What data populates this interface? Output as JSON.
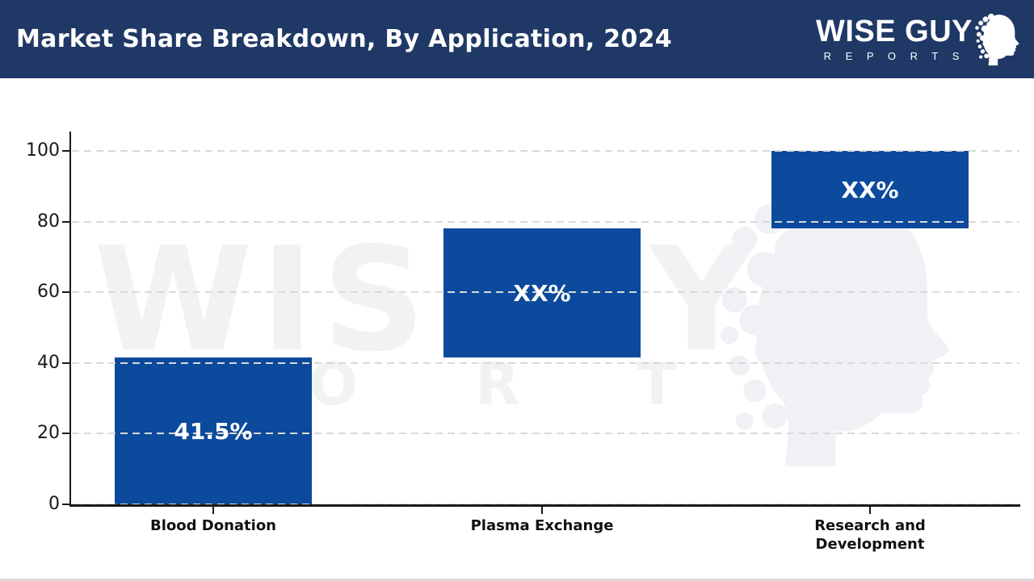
{
  "header": {
    "title": "Market Share Breakdown, By Application, 2024",
    "bg_color": "#1f3866",
    "logo": {
      "brand_line1": "WISE GUY",
      "brand_line2": "R E P O R T S",
      "face_icon": "dotted-face-profile"
    }
  },
  "watermark": {
    "word1": "WISE",
    "word2": "Y",
    "word3": "P O R T S"
  },
  "chart_data": {
    "type": "bar",
    "subtype": "stacked-waterfall",
    "title": "Market Share Breakdown, By Application, 2024",
    "categories": [
      "Blood Donation",
      "Plasma Exchange",
      "Research and\nDevelopment"
    ],
    "segments": [
      {
        "category": "Blood Donation",
        "start": 0,
        "end": 41.5,
        "value": 41.5,
        "label": "41.5%"
      },
      {
        "category": "Plasma Exchange",
        "start": 41.5,
        "end": 78,
        "value": 36.5,
        "label": "XX%"
      },
      {
        "category": "Research and Development",
        "start": 78,
        "end": 100,
        "value": 22,
        "label": "XX%"
      }
    ],
    "ylim": [
      0,
      100
    ],
    "yticks": [
      0,
      20,
      40,
      60,
      80,
      100
    ],
    "xlabel": "",
    "ylabel": "",
    "grid": "horizontal-dashed",
    "grid_color": "#d9d9d9",
    "legend": "none",
    "bar_color": "#0b4a9c",
    "bar_label_color": "#ffffff",
    "axis_color": "#1a1a1a"
  }
}
